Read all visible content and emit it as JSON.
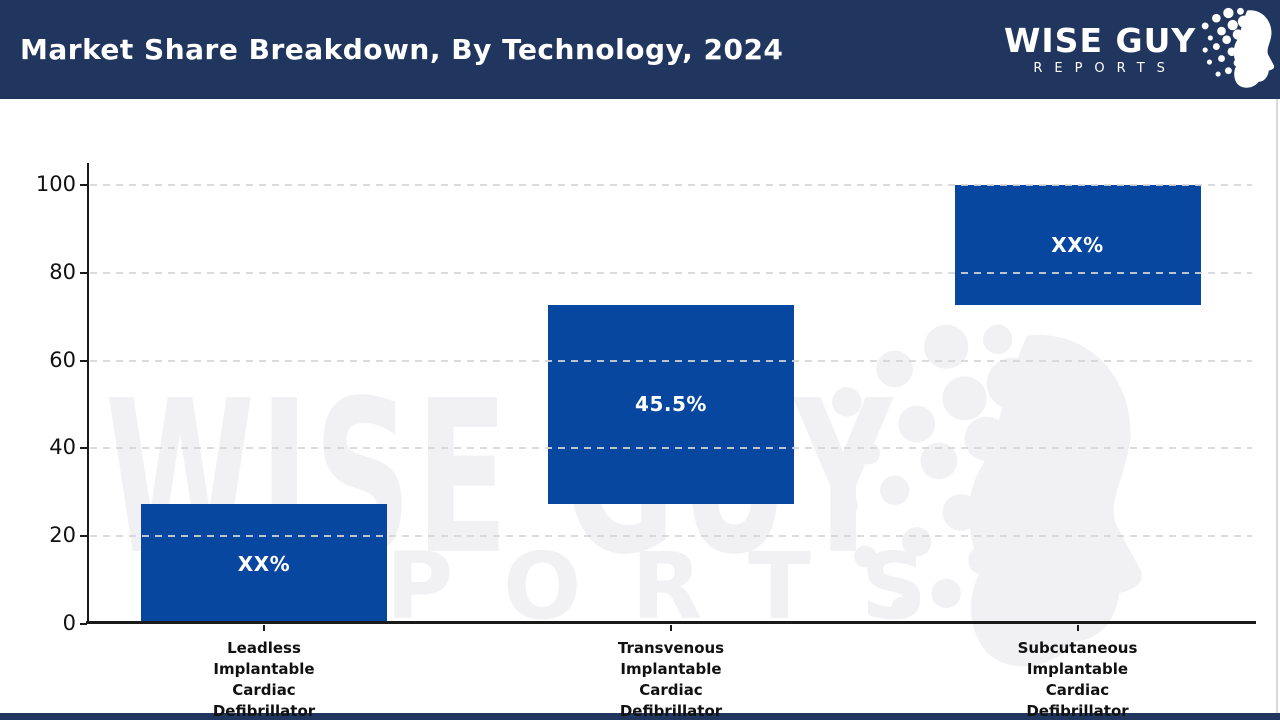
{
  "header": {
    "title": "Market Share Breakdown, By Technology, 2024",
    "logo": {
      "brand_line1": "WISE GUY",
      "brand_line2": "REPORTS"
    }
  },
  "watermark": {
    "text_line1": "WISE GUY",
    "text_line2": "REPORTS"
  },
  "chart_data": {
    "type": "bar",
    "variant": "floating-waterfall-segments",
    "title": "Market Share Breakdown, By Technology, 2024",
    "categories": [
      "Leadless Implantable Cardiac Defibrillator",
      "Transvenous Implantable Cardiac Defibrillator",
      "Subcutaneous Implantable Cardiac Defibrillator"
    ],
    "categories_lines": [
      [
        "Leadless",
        "Implantable",
        "Cardiac",
        "Defibrillator"
      ],
      [
        "Transvenous",
        "Implantable",
        "Cardiac",
        "Defibrillator"
      ],
      [
        "Subcutaneous",
        "Implantable",
        "Cardiac",
        "Defibrillator"
      ]
    ],
    "segments": [
      {
        "category_index": 0,
        "start": 0,
        "end": 27.25,
        "value": 27.25,
        "value_label": "XX%"
      },
      {
        "category_index": 1,
        "start": 27.25,
        "end": 72.75,
        "value": 45.5,
        "value_label": "45.5%"
      },
      {
        "category_index": 2,
        "start": 72.75,
        "end": 100,
        "value": 27.25,
        "value_label": "XX%"
      }
    ],
    "xlabel": "",
    "ylabel": "",
    "yticks": [
      0,
      20,
      40,
      60,
      80,
      100
    ],
    "gridline_values": [
      20,
      40,
      60,
      80,
      100
    ],
    "ylim": [
      0,
      105
    ],
    "grid": true,
    "legend": false,
    "bar_color": "#0847a0",
    "grid_color": "#d6d6d6",
    "axis_color": "#1a1a1a",
    "value_label_color": "#ffffff"
  },
  "colors": {
    "header_bg": "#21365e",
    "footer_bg": "#21365e",
    "watermark": "#f1f1f4"
  }
}
